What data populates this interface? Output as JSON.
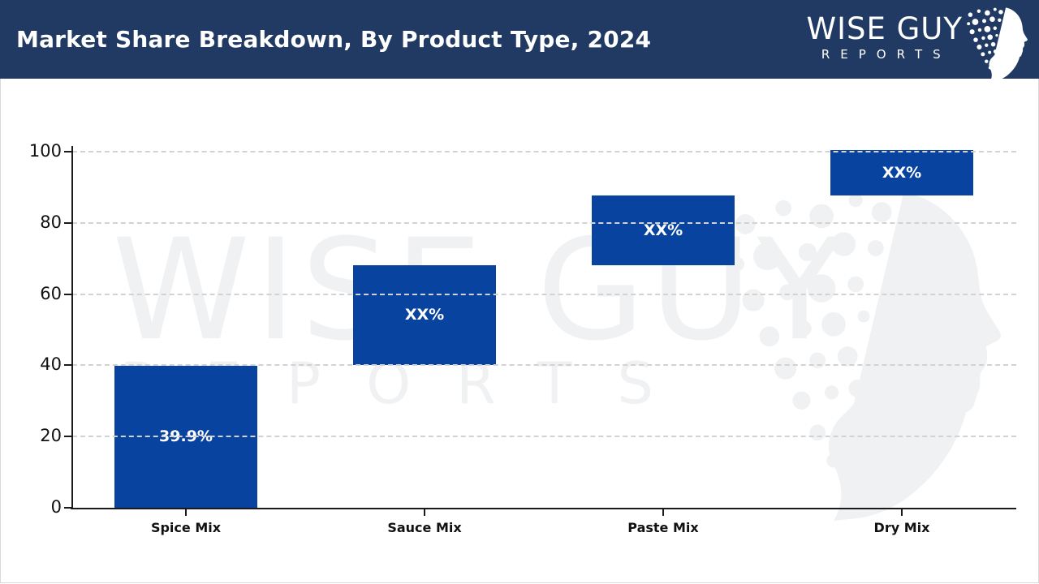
{
  "header": {
    "title": "Market Share Breakdown, By Product Type, 2024",
    "brand": {
      "line1": "WISE GUY",
      "line2": "REPORTS"
    }
  },
  "watermark": {
    "line1": "WISE GUY",
    "line2": "REPORTS"
  },
  "colors": {
    "header_bg": "#213a63",
    "bar": "#0843a0",
    "bar_label": "#ffffff",
    "grid": "#d2d2d2",
    "axis": "#1a1a1a",
    "watermark": "#f0f1f3",
    "frame_border": "#d9d9d9"
  },
  "chart_data": {
    "type": "bar",
    "subtype": "waterfall",
    "title": "Market Share Breakdown, By Product Type, 2024",
    "categories": [
      "Spice Mix",
      "Sauce Mix",
      "Paste Mix",
      "Dry Mix"
    ],
    "series": [
      {
        "name": "Market share (%)",
        "segments": [
          {
            "category": "Spice Mix",
            "start": 0,
            "end": 39.9,
            "label": "39.9%"
          },
          {
            "category": "Sauce Mix",
            "start": 40,
            "end": 68.2,
            "label": "XX%"
          },
          {
            "category": "Paste Mix",
            "start": 68.2,
            "end": 87.8,
            "label": "XX%"
          },
          {
            "category": "Dry Mix",
            "start": 87.8,
            "end": 100.4,
            "label": "XX%"
          }
        ]
      }
    ],
    "xlabel": "",
    "ylabel": "",
    "yticks": [
      0,
      20,
      40,
      60,
      80,
      100
    ],
    "ylim": [
      0,
      101.5
    ],
    "grid": "horizontal-dashed",
    "legend": "none"
  }
}
